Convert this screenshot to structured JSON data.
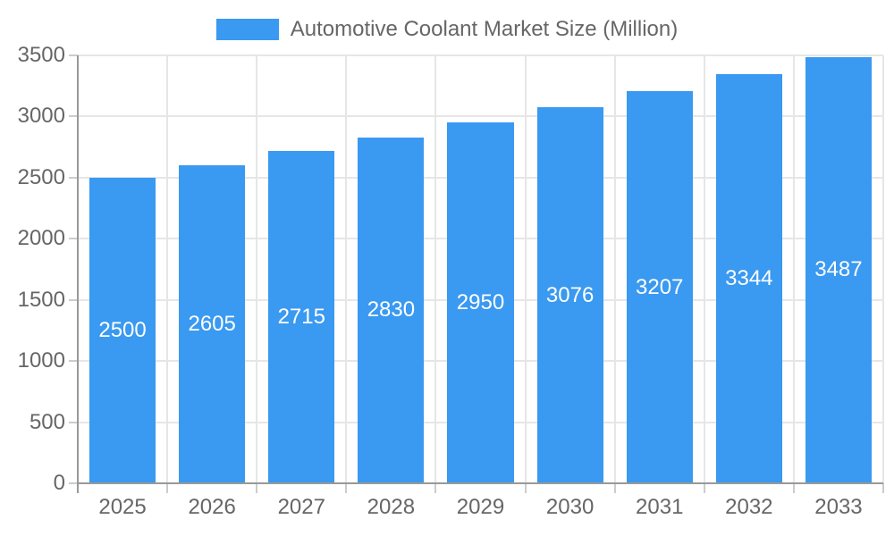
{
  "chart_data": {
    "type": "bar",
    "title": "Automotive Coolant Market Size (Million)",
    "legend": {
      "label": "Automotive Coolant Market Size (Million)",
      "position": "top"
    },
    "categories": [
      "2025",
      "2026",
      "2027",
      "2028",
      "2029",
      "2030",
      "2031",
      "2032",
      "2033"
    ],
    "values": [
      2500,
      2605,
      2715,
      2830,
      2950,
      3076,
      3207,
      3344,
      3487
    ],
    "xlabel": "",
    "ylabel": "",
    "ylim": [
      0,
      3500
    ],
    "ytick_step": 500,
    "yticks": [
      0,
      500,
      1000,
      1500,
      2000,
      2500,
      3000,
      3500
    ],
    "grid": true,
    "bar_color": "#3A99F0",
    "colors": {
      "bar": "#3A99F0",
      "bar_label": "#FFFFFF",
      "axis": "#999999",
      "grid": "#E6E6E6",
      "tick": "#CCCCCC",
      "text": "#666666",
      "background": "#FFFFFF"
    }
  }
}
